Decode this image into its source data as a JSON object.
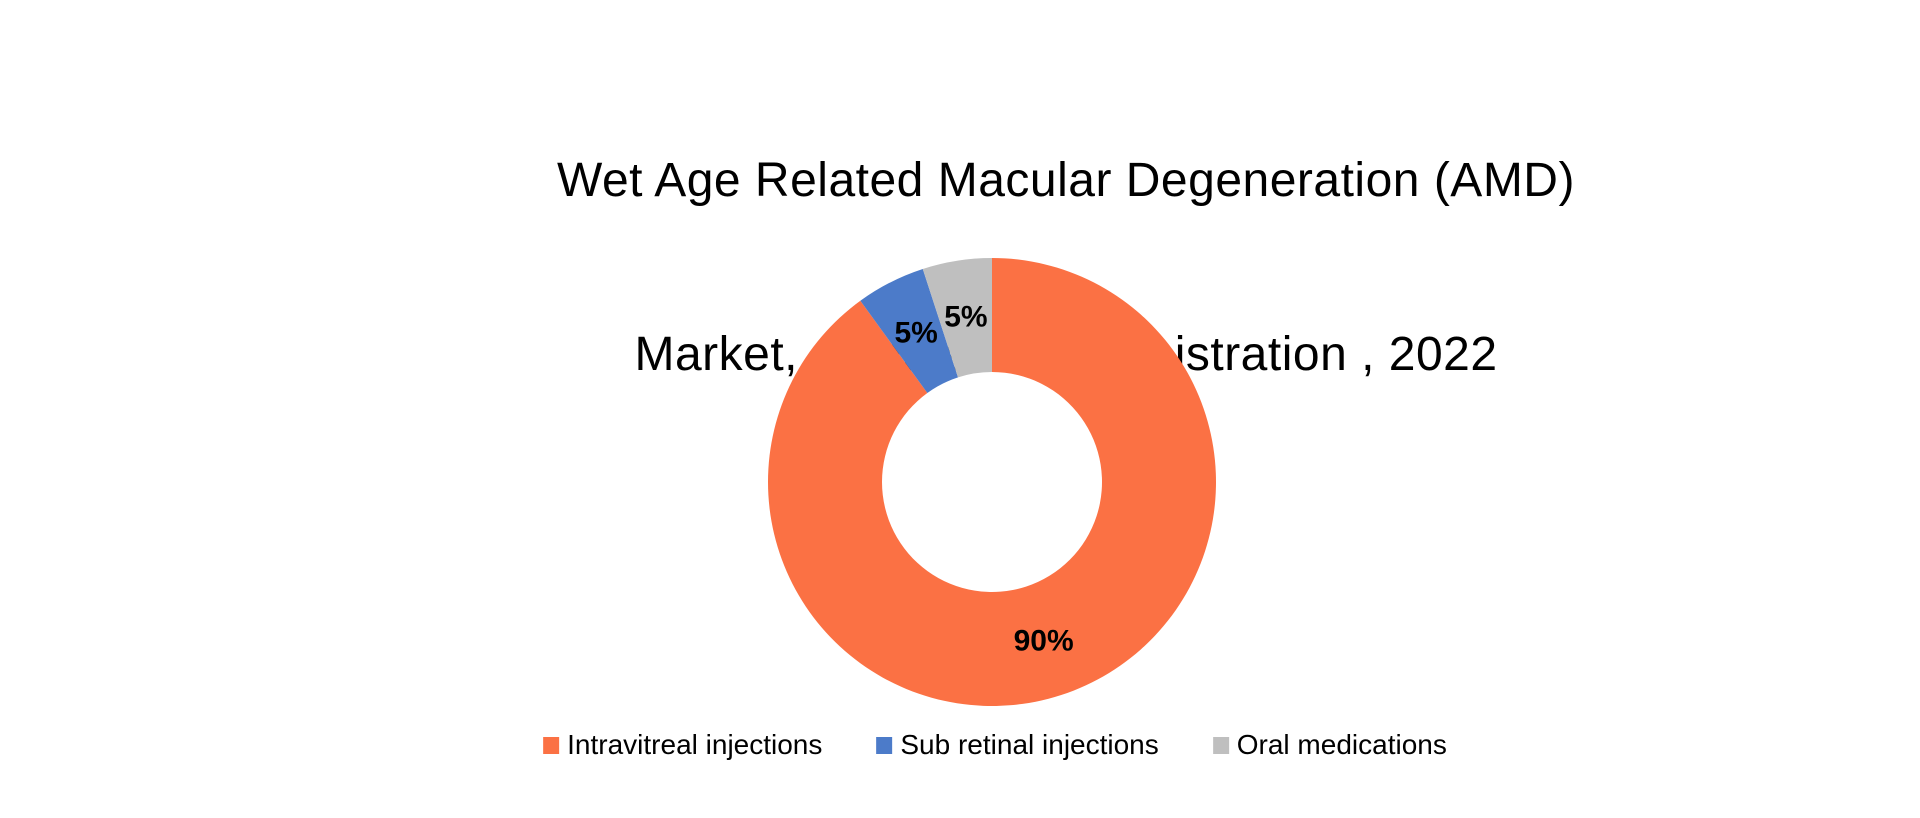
{
  "title": {
    "line1": "Wet Age Related Macular Degeneration (AMD)",
    "line2": "Market,   Route of Administration , 2022"
  },
  "chart_data": {
    "type": "pie",
    "subtype": "donut",
    "title": "Wet Age Related Macular Degeneration (AMD) Market,   Route of Administration , 2022",
    "categories": [
      "Intravitreal injections",
      "Sub retinal injections",
      "Oral medications"
    ],
    "values": [
      90,
      5,
      5
    ],
    "data_labels": [
      "90%",
      "5%",
      "5%"
    ],
    "colors": [
      "#FB7144",
      "#4C7BC9",
      "#BFBFBF"
    ],
    "start_angle_deg": 0,
    "direction": "clockwise",
    "inner_radius_ratio": 0.49,
    "legend_position": "bottom",
    "data_label_color": "#000000",
    "background_color": "#FFFFFF"
  },
  "legend": {
    "items": [
      {
        "label": "Intravitreal injections",
        "color": "#FB7144"
      },
      {
        "label": "Sub retinal injections",
        "color": "#4C7BC9"
      },
      {
        "label": "Oral medications",
        "color": "#BFBFBF"
      }
    ]
  }
}
